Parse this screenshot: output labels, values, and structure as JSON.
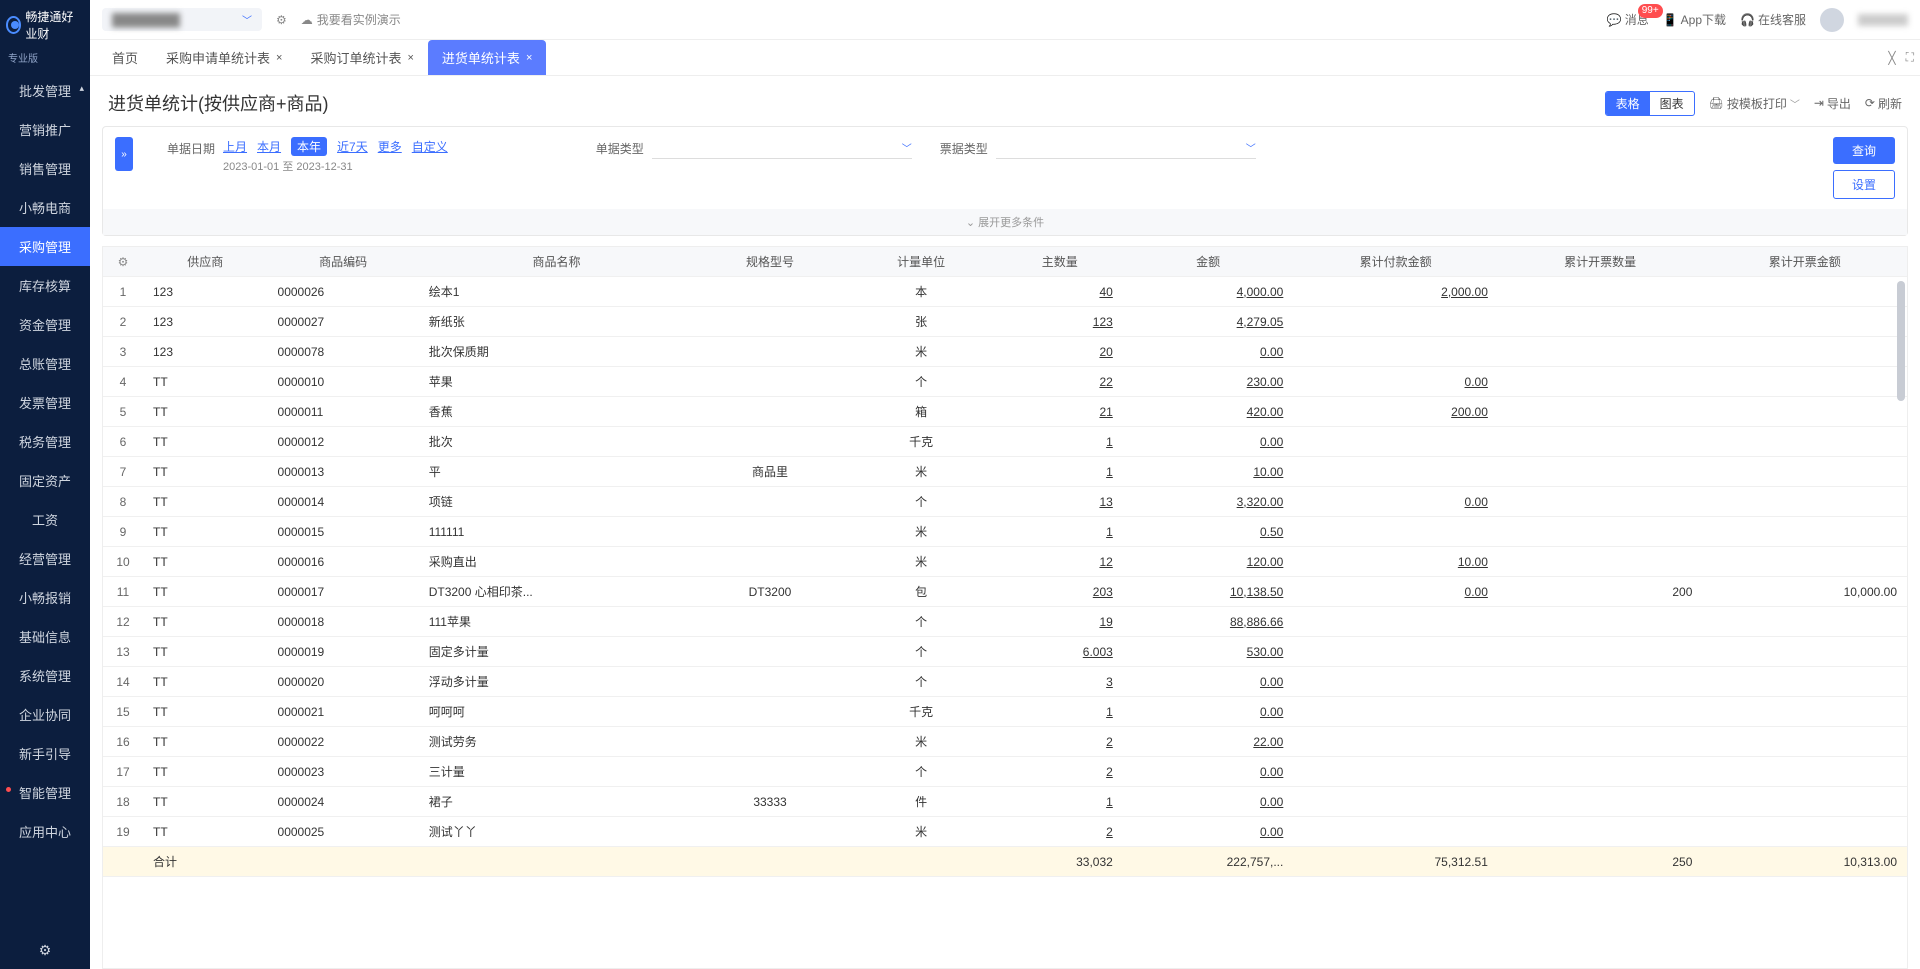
{
  "brand": {
    "name": "畅捷通好业财",
    "edition": "专业版"
  },
  "sidebar": {
    "items": [
      {
        "label": "批发管理",
        "expand": true
      },
      {
        "label": "营销推广"
      },
      {
        "label": "销售管理"
      },
      {
        "label": "小畅电商"
      },
      {
        "label": "采购管理",
        "active": true
      },
      {
        "label": "库存核算"
      },
      {
        "label": "资金管理"
      },
      {
        "label": "总账管理"
      },
      {
        "label": "发票管理"
      },
      {
        "label": "税务管理"
      },
      {
        "label": "固定资产"
      },
      {
        "label": "工资"
      },
      {
        "label": "经营管理"
      },
      {
        "label": "小畅报销"
      },
      {
        "label": "基础信息"
      },
      {
        "label": "系统管理"
      },
      {
        "label": "企业协同"
      },
      {
        "label": "新手引导"
      },
      {
        "label": "智能管理",
        "dot": true
      },
      {
        "label": "应用中心"
      }
    ]
  },
  "topbar": {
    "demo": "我要看实例演示",
    "msg": "消息",
    "msg_badge": "99+",
    "download": "App下载",
    "service": "在线客服"
  },
  "tabs": [
    {
      "label": "首页",
      "closable": false
    },
    {
      "label": "采购申请单统计表",
      "closable": true
    },
    {
      "label": "采购订单统计表",
      "closable": true
    },
    {
      "label": "进货单统计表",
      "closable": true,
      "active": true
    }
  ],
  "page": {
    "title": "进货单统计(按供应商+商品)",
    "seg": {
      "a": "表格",
      "b": "图表"
    },
    "print": "按模板打印",
    "export": "导出",
    "refresh": "刷新"
  },
  "filters": {
    "date_label": "单据日期",
    "date_opts": [
      "上月",
      "本月",
      "本年",
      "近7天",
      "更多",
      "自定义"
    ],
    "date_active": 2,
    "date_range": "2023-01-01 至 2023-12-31",
    "bill_type": "单据类型",
    "inv_type": "票据类型",
    "query": "查询",
    "setting": "设置",
    "expand": "展开更多条件"
  },
  "table": {
    "headers": [
      "供应商",
      "商品编码",
      "商品名称",
      "规格型号",
      "计量单位",
      "主数量",
      "金额",
      "累计付款金额",
      "累计开票数量",
      "累计开票金额"
    ],
    "rows": [
      {
        "i": 1,
        "sup": "123",
        "code": "0000026",
        "name": "绘本1",
        "spec": "",
        "unit": "本",
        "qty": "40",
        "amt": "4,000.00",
        "paid": "2,000.00",
        "invq": "",
        "inva": ""
      },
      {
        "i": 2,
        "sup": "123",
        "code": "0000027",
        "name": "新纸张",
        "spec": "",
        "unit": "张",
        "qty": "123",
        "amt": "4,279.05",
        "paid": "",
        "invq": "",
        "inva": ""
      },
      {
        "i": 3,
        "sup": "123",
        "code": "0000078",
        "name": "批次保质期",
        "spec": "",
        "unit": "米",
        "qty": "20",
        "amt": "0.00",
        "paid": "",
        "invq": "",
        "inva": ""
      },
      {
        "i": 4,
        "sup": "TT",
        "code": "0000010",
        "name": "苹果",
        "spec": "",
        "unit": "个",
        "qty": "22",
        "amt": "230.00",
        "paid": "0.00",
        "invq": "",
        "inva": ""
      },
      {
        "i": 5,
        "sup": "TT",
        "code": "0000011",
        "name": "香蕉",
        "spec": "",
        "unit": "箱",
        "qty": "21",
        "amt": "420.00",
        "paid": "200.00",
        "invq": "",
        "inva": ""
      },
      {
        "i": 6,
        "sup": "TT",
        "code": "0000012",
        "name": "批次",
        "spec": "",
        "unit": "千克",
        "qty": "1",
        "amt": "0.00",
        "paid": "",
        "invq": "",
        "inva": ""
      },
      {
        "i": 7,
        "sup": "TT",
        "code": "0000013",
        "name": "平",
        "spec": "商品里",
        "unit": "米",
        "qty": "1",
        "amt": "10.00",
        "paid": "",
        "invq": "",
        "inva": ""
      },
      {
        "i": 8,
        "sup": "TT",
        "code": "0000014",
        "name": "项链",
        "spec": "",
        "unit": "个",
        "qty": "13",
        "amt": "3,320.00",
        "paid": "0.00",
        "invq": "",
        "inva": ""
      },
      {
        "i": 9,
        "sup": "TT",
        "code": "0000015",
        "name": "111111",
        "spec": "",
        "unit": "米",
        "qty": "1",
        "amt": "0.50",
        "paid": "",
        "invq": "",
        "inva": ""
      },
      {
        "i": 10,
        "sup": "TT",
        "code": "0000016",
        "name": "采购直出",
        "spec": "",
        "unit": "米",
        "qty": "12",
        "amt": "120.00",
        "paid": "10.00",
        "invq": "",
        "inva": ""
      },
      {
        "i": 11,
        "sup": "TT",
        "code": "0000017",
        "name": "DT3200 心相印茶...",
        "spec": "DT3200",
        "unit": "包",
        "qty": "203",
        "amt": "10,138.50",
        "paid": "0.00",
        "invq": "200",
        "inva": "10,000.00"
      },
      {
        "i": 12,
        "sup": "TT",
        "code": "0000018",
        "name": "111苹果",
        "spec": "",
        "unit": "个",
        "qty": "19",
        "amt": "88,886.66",
        "paid": "",
        "invq": "",
        "inva": ""
      },
      {
        "i": 13,
        "sup": "TT",
        "code": "0000019",
        "name": "固定多计量",
        "spec": "",
        "unit": "个",
        "qty": "6.003",
        "amt": "530.00",
        "paid": "",
        "invq": "",
        "inva": ""
      },
      {
        "i": 14,
        "sup": "TT",
        "code": "0000020",
        "name": "浮动多计量",
        "spec": "",
        "unit": "个",
        "qty": "3",
        "amt": "0.00",
        "paid": "",
        "invq": "",
        "inva": ""
      },
      {
        "i": 15,
        "sup": "TT",
        "code": "0000021",
        "name": "呵呵呵",
        "spec": "",
        "unit": "千克",
        "qty": "1",
        "amt": "0.00",
        "paid": "",
        "invq": "",
        "inva": ""
      },
      {
        "i": 16,
        "sup": "TT",
        "code": "0000022",
        "name": "测试劳务",
        "spec": "",
        "unit": "米",
        "qty": "2",
        "amt": "22.00",
        "paid": "",
        "invq": "",
        "inva": ""
      },
      {
        "i": 17,
        "sup": "TT",
        "code": "0000023",
        "name": "三计量",
        "spec": "",
        "unit": "个",
        "qty": "2",
        "amt": "0.00",
        "paid": "",
        "invq": "",
        "inva": ""
      },
      {
        "i": 18,
        "sup": "TT",
        "code": "0000024",
        "name": "裙子",
        "spec": "33333",
        "unit": "件",
        "qty": "1",
        "amt": "0.00",
        "paid": "",
        "invq": "",
        "inva": ""
      },
      {
        "i": 19,
        "sup": "TT",
        "code": "0000025",
        "name": "测试丫丫",
        "spec": "",
        "unit": "米",
        "qty": "2",
        "amt": "0.00",
        "paid": "",
        "invq": "",
        "inva": ""
      }
    ],
    "total": {
      "label": "合计",
      "qty": "33,032",
      "amt": "222,757,...",
      "paid": "75,312.51",
      "invq": "250",
      "inva": "10,313.00"
    }
  }
}
